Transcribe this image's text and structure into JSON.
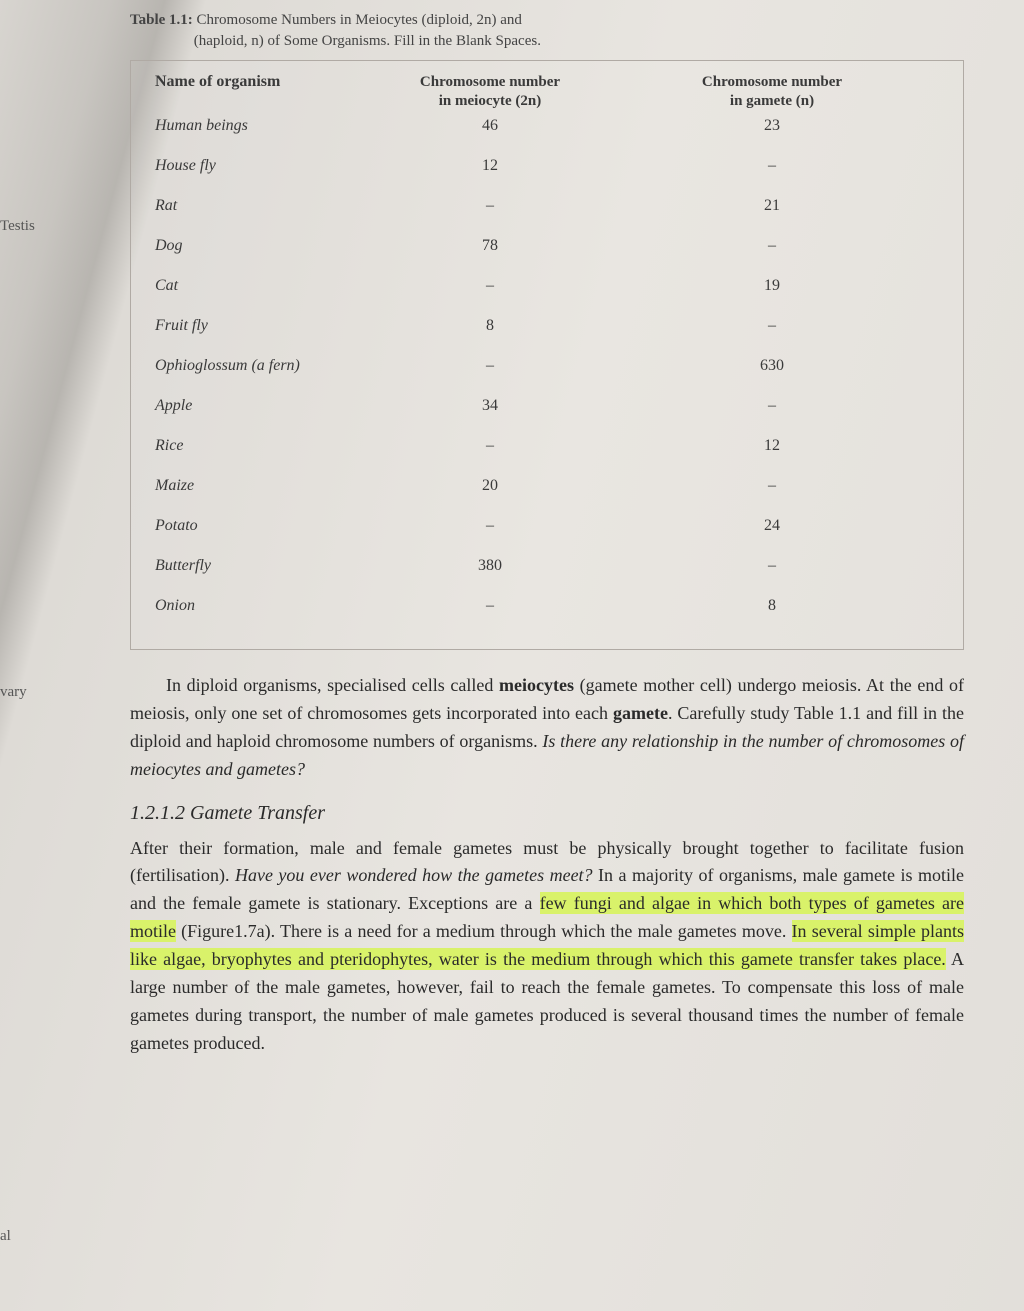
{
  "caption_label": "Table 1.1:",
  "caption_text_1": "Chromosome Numbers in Meiocytes (diploid, 2n) and",
  "caption_text_2": "(haploid, n) of Some Organisms. Fill in the Blank Spaces.",
  "margin": {
    "testis": "Testis",
    "vary": "vary",
    "al": "al"
  },
  "headers": {
    "name": "Name of organism",
    "c2n_l1": "Chromosome number",
    "c2n_l2": "in meiocyte (2n)",
    "cn_l1": "Chromosome number",
    "cn_l2": "in gamete (n)"
  },
  "rows": [
    {
      "name": "Human beings",
      "c2n": "46",
      "cn": "23"
    },
    {
      "name": "House fly",
      "c2n": "12",
      "cn": "–"
    },
    {
      "name": "Rat",
      "c2n": "–",
      "cn": "21"
    },
    {
      "name": "Dog",
      "c2n": "78",
      "cn": "–"
    },
    {
      "name": "Cat",
      "c2n": "–",
      "cn": "19"
    },
    {
      "name": "Fruit fly",
      "c2n": "8",
      "cn": "–"
    },
    {
      "name": "Ophioglossum (a fern)",
      "c2n": "–",
      "cn": "630"
    },
    {
      "name": "Apple",
      "c2n": "34",
      "cn": "–"
    },
    {
      "name": "Rice",
      "c2n": "–",
      "cn": "12"
    },
    {
      "name": "Maize",
      "c2n": "20",
      "cn": "–"
    },
    {
      "name": "Potato",
      "c2n": "–",
      "cn": "24"
    },
    {
      "name": "Butterfly",
      "c2n": "380",
      "cn": "–"
    },
    {
      "name": "Onion",
      "c2n": "–",
      "cn": "8"
    }
  ],
  "para1": {
    "t1": "In diploid organisms, specialised cells called ",
    "b1": "meiocytes",
    "t2": " (gamete mother cell) undergo meiosis. At the end of meiosis, only one set of chromosomes gets incorporated into each ",
    "b2": "gamete",
    "t3": ". Carefully study Table 1.1 and fill in the diploid and haploid chromosome numbers of organisms. ",
    "i1": "Is there any relationship in the number of chromosomes of meiocytes and gametes?"
  },
  "heading": "1.2.1.2 Gamete Transfer",
  "para2": {
    "t1": "After their formation, male and female gametes must be physically brought together to facilitate fusion (fertilisation). ",
    "i1": "Have you ever wondered how the gametes meet?",
    "t2": " In a majority of organisms, male gamete is motile and the female gamete is stationary. Exceptions are a ",
    "h1": "few fungi and algae in which both types of gametes are motile",
    "t3": " (Figure1.7a). There is a need for a medium through which the male gametes move. ",
    "h2": "In several simple plants like algae, bryophytes and pteridophytes, water is the medium through which this gamete transfer takes place.",
    "t4": " A large number of the male gametes, however, fail to reach the female gametes. To compensate this loss of male gametes during transport, the number of male gametes produced is several thousand times the number of female gametes produced."
  }
}
